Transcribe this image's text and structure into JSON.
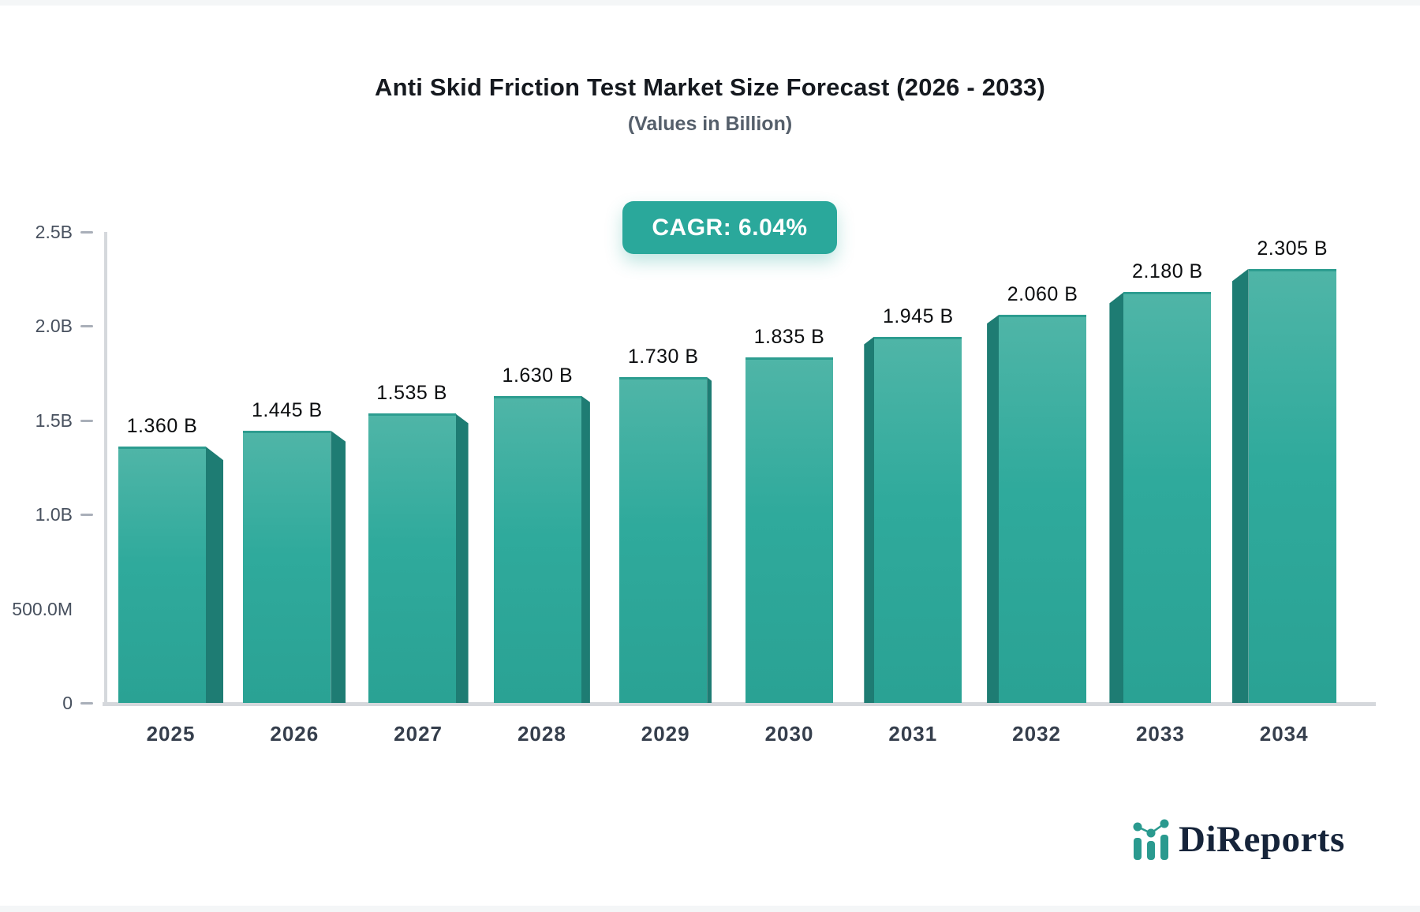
{
  "page": {
    "title": "Anti Skid Friction Test Market Size Forecast (2026 - 2033)",
    "subtitle": "(Values in Billion)",
    "cagr_label": "CAGR: 6.04%"
  },
  "branding": {
    "logo_text": "DiReports",
    "logo_icon": "bar-line-chart-icon"
  },
  "colors": {
    "accent_teal": "#2aa89b",
    "bar_face_top": "#4fb5a7",
    "bar_face_bottom": "#2aa294",
    "bar_side_dark": "#1e7c73",
    "bar_top_edge": "#2d9d90",
    "axis_line": "#d5d8dc",
    "tick_dash": "#a9afb9",
    "value_label": "#0c0e10",
    "year_label": "#353e4c",
    "y_label": "#47505e",
    "logo_navy": "#16243a"
  },
  "chart_data": {
    "type": "bar",
    "title": "Anti Skid Friction Test Market Size Forecast (2026 - 2033)",
    "subtitle": "(Values in Billion)",
    "cagr": "6.04%",
    "unit": "Billion",
    "categories": [
      "2025",
      "2026",
      "2027",
      "2028",
      "2029",
      "2030",
      "2031",
      "2032",
      "2033",
      "2034"
    ],
    "values": [
      1.36,
      1.445,
      1.535,
      1.63,
      1.73,
      1.835,
      1.945,
      2.06,
      2.18,
      2.305
    ],
    "bar_labels": [
      "1.360 B",
      "1.445 B",
      "1.535 B",
      "1.630 B",
      "1.730 B",
      "1.835 B",
      "1.945 B",
      "2.060 B",
      "2.180 B",
      "2.305 B"
    ],
    "y_axis": {
      "range": [
        0,
        2.5
      ],
      "ticks": [
        {
          "label": "2.5B",
          "value": 2.5,
          "dash": true
        },
        {
          "label": "2.0B",
          "value": 2.0,
          "dash": true
        },
        {
          "label": "1.5B",
          "value": 1.5,
          "dash": true
        },
        {
          "label": "1.0B",
          "value": 1.0,
          "dash": true
        },
        {
          "label": "500.0M",
          "value": 0.5,
          "dash": false
        },
        {
          "label": "0",
          "value": 0.0,
          "dash": true
        }
      ]
    },
    "xlabel": "",
    "ylabel": "",
    "grid": false,
    "legend": false,
    "style": "3d-teal-bars"
  }
}
